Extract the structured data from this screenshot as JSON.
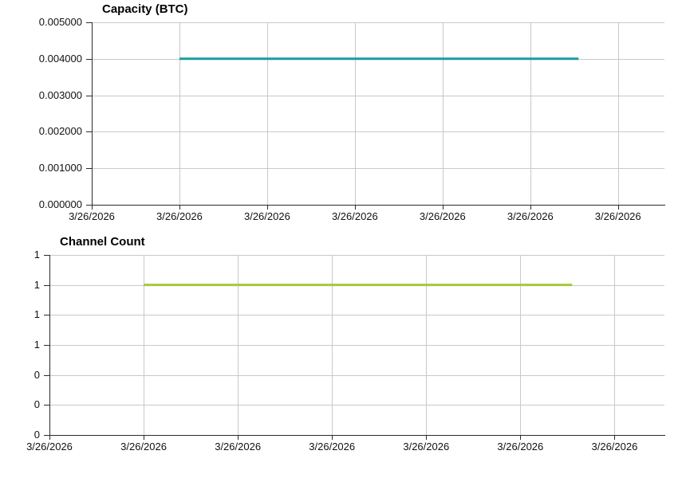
{
  "chart_data": [
    {
      "type": "line",
      "title": "Capacity (BTC)",
      "grid": true,
      "legend_position": "none",
      "x_axis": {
        "min": 0,
        "max": 6.53,
        "ticks": [
          {
            "value": 0,
            "label": "3/26/2026"
          },
          {
            "value": 1,
            "label": "3/26/2026"
          },
          {
            "value": 2,
            "label": "3/26/2026"
          },
          {
            "value": 3,
            "label": "3/26/2026"
          },
          {
            "value": 4,
            "label": "3/26/2026"
          },
          {
            "value": 5,
            "label": "3/26/2026"
          },
          {
            "value": 6,
            "label": "3/26/2026"
          }
        ]
      },
      "y_axis": {
        "min": 0,
        "max": 0.005,
        "ticks": [
          {
            "value": 0,
            "label": "0.000000"
          },
          {
            "value": 0.001,
            "label": "0.001000"
          },
          {
            "value": 0.002,
            "label": "0.002000"
          },
          {
            "value": 0.003,
            "label": "0.003000"
          },
          {
            "value": 0.004,
            "label": "0.004000"
          },
          {
            "value": 0.005,
            "label": "0.005000"
          }
        ]
      },
      "series": [
        {
          "name": "Capacity (BTC)",
          "color": "#1A9BA1",
          "stroke_width": 3,
          "points": [
            {
              "x": 1.0,
              "y": 0.004
            },
            {
              "x": 5.55,
              "y": 0.004
            }
          ]
        }
      ]
    },
    {
      "type": "line",
      "title": "Channel Count",
      "grid": true,
      "legend_position": "none",
      "x_axis": {
        "min": 0,
        "max": 6.53,
        "ticks": [
          {
            "value": 0,
            "label": "3/26/2026"
          },
          {
            "value": 1,
            "label": "3/26/2026"
          },
          {
            "value": 2,
            "label": "3/26/2026"
          },
          {
            "value": 3,
            "label": "3/26/2026"
          },
          {
            "value": 4,
            "label": "3/26/2026"
          },
          {
            "value": 5,
            "label": "3/26/2026"
          },
          {
            "value": 6,
            "label": "3/26/2026"
          }
        ]
      },
      "y_axis": {
        "min": 0,
        "max": 1.2,
        "ticks": [
          {
            "value": 0,
            "label": "0"
          },
          {
            "value": 0.2,
            "label": "0"
          },
          {
            "value": 0.4,
            "label": "0"
          },
          {
            "value": 0.6,
            "label": "1"
          },
          {
            "value": 0.8,
            "label": "1"
          },
          {
            "value": 1.0,
            "label": "1"
          },
          {
            "value": 1.2,
            "label": "1"
          }
        ]
      },
      "series": [
        {
          "name": "Channel Count",
          "color": "#A6C83C",
          "stroke_width": 3,
          "points": [
            {
              "x": 1.0,
              "y": 1
            },
            {
              "x": 5.55,
              "y": 1
            }
          ]
        }
      ]
    }
  ]
}
